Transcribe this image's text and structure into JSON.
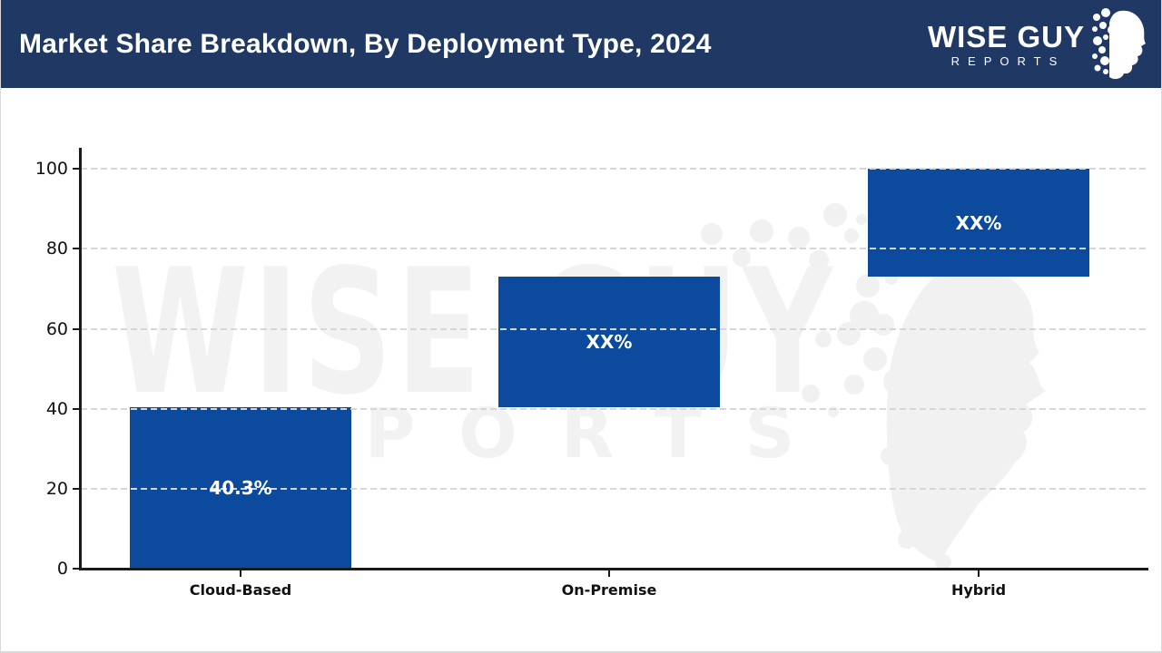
{
  "header": {
    "title": "Market Share Breakdown, By Deployment Type, 2024",
    "logo": {
      "line1": "WISE GUY",
      "line2": "REPORTS"
    }
  },
  "watermark": {
    "word1": "WISE GUY",
    "word2": "REPORTS"
  },
  "colors": {
    "header_bg": "#1F3864",
    "bar": "#0C4A9E",
    "gridline": "#D6D6D6",
    "axis": "#1A1A1A",
    "bar_label": "#FFFFFF",
    "tick_label": "#111111",
    "watermark": "#F2F2F2"
  },
  "chart_data": {
    "type": "bar",
    "subtype": "waterfall-breakdown",
    "title": "Market Share Breakdown, By Deployment Type, 2024",
    "categories": [
      "Cloud-Based",
      "On-Premise",
      "Hybrid"
    ],
    "segments": [
      {
        "category": "Cloud-Based",
        "start": 0,
        "end": 40.3,
        "label": "40.3%"
      },
      {
        "category": "On-Premise",
        "start": 40.3,
        "end": 73.1,
        "label": "XX%"
      },
      {
        "category": "Hybrid",
        "start": 73.1,
        "end": 100,
        "label": "XX%"
      }
    ],
    "values_pct": [
      40.3,
      null,
      null
    ],
    "yticks": [
      0,
      20,
      40,
      60,
      80,
      100
    ],
    "ylim": [
      0,
      105.3
    ],
    "xlabel": "",
    "ylabel": "",
    "grid": "horizontal-dashed-over-bars",
    "legend": "none"
  }
}
